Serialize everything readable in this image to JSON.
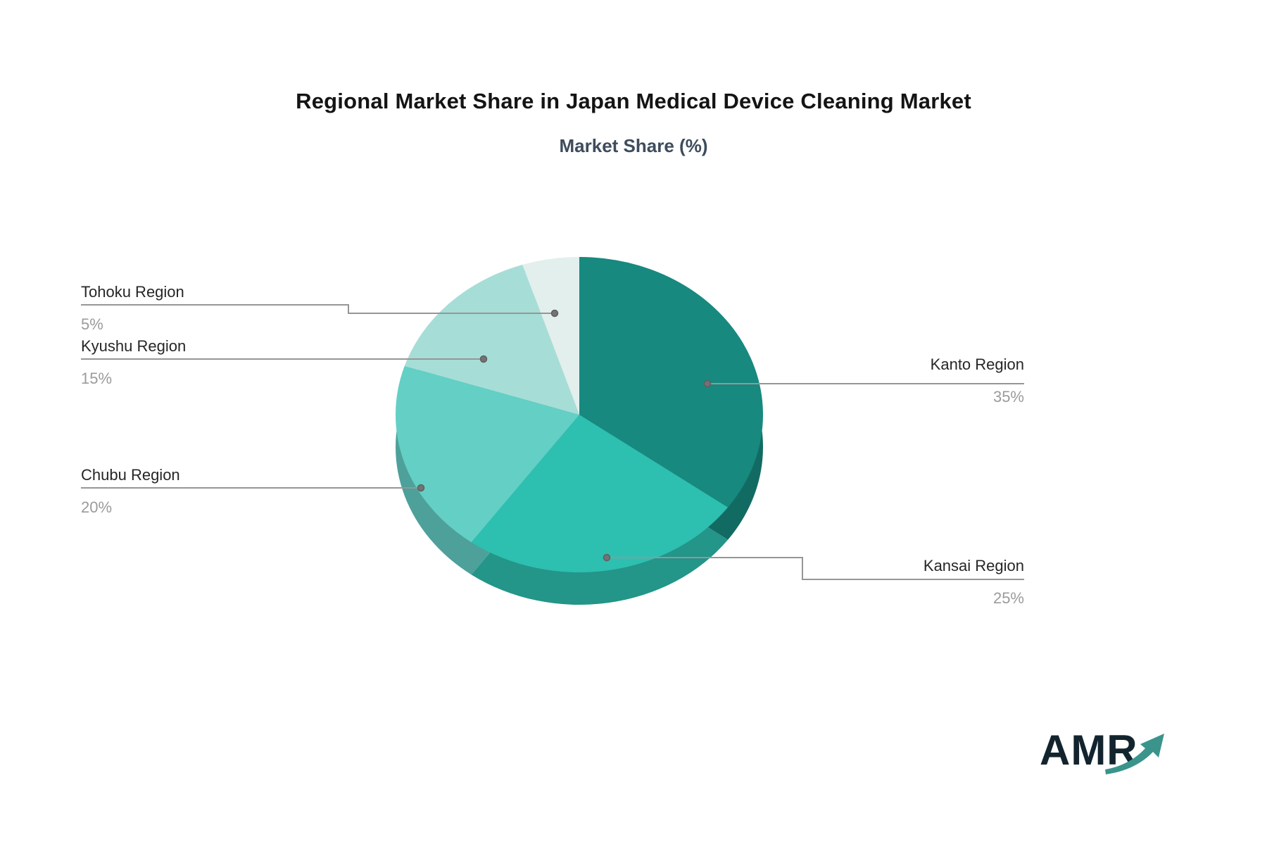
{
  "chart_data": {
    "type": "pie",
    "title": "Regional Market Share in Japan Medical Device Cleaning Market",
    "subtitle": "Market Share (%)",
    "categories": [
      "Kanto Region",
      "Kansai Region",
      "Chubu Region",
      "Kyushu Region",
      "Tohoku Region"
    ],
    "values": [
      35,
      25,
      20,
      15,
      5
    ],
    "value_labels": [
      "35%",
      "25%",
      "20%",
      "15%",
      "5%"
    ],
    "colors": [
      "#17897f",
      "#2dbfb0",
      "#63cfc5",
      "#a6ded7",
      "#e2efed"
    ],
    "start_angle_deg": 0,
    "direction": "clockwise",
    "effect": "3d-extruded",
    "legend_position": "none",
    "label_color": "#262626",
    "value_label_color": "#9b9b9b",
    "connector_color": "#969696"
  },
  "branding": {
    "logo_text": "AMR"
  }
}
